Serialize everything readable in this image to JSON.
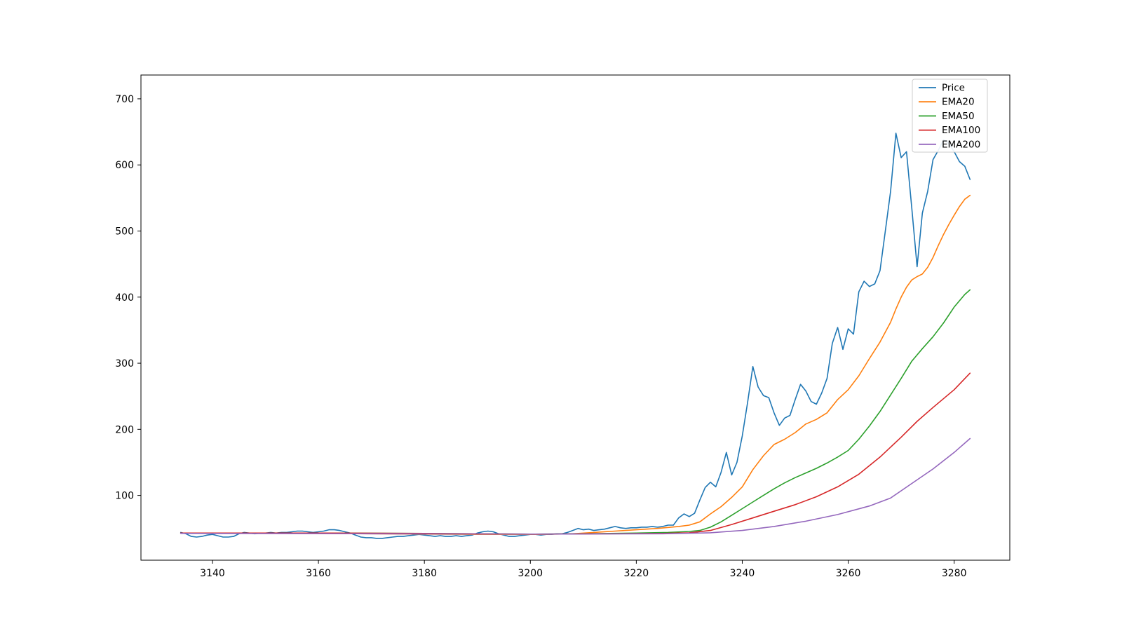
{
  "figure": {
    "background": "#ffffff",
    "plot_background": "#ffffff",
    "spine_color": "#000000",
    "tick_label_color": "#000000"
  },
  "chart_data": {
    "type": "line",
    "title": "",
    "xlabel": "",
    "ylabel": "",
    "grid": false,
    "xlim": [
      3126.5,
      3290.5
    ],
    "ylim": [
      2,
      736
    ],
    "x_ticks": [
      3140,
      3160,
      3180,
      3200,
      3220,
      3240,
      3260,
      3280
    ],
    "y_ticks": [
      100,
      200,
      300,
      400,
      500,
      600,
      700
    ],
    "legend": {
      "position": "upper right",
      "background": "#ffffff",
      "border_color": "#cccccc",
      "entries": [
        "Price",
        "EMA20",
        "EMA50",
        "EMA100",
        "EMA200"
      ]
    },
    "series": [
      {
        "name": "Price",
        "color": "#1f77b4",
        "x_start": 3134,
        "x_step": 1,
        "values": [
          44,
          42,
          38,
          37,
          38,
          40,
          41,
          39,
          37,
          37,
          38,
          42,
          44,
          43,
          42,
          43,
          43,
          44,
          43,
          44,
          44,
          45,
          46,
          46,
          45,
          44,
          45,
          46,
          48,
          48,
          47,
          45,
          43,
          40,
          37,
          36,
          36,
          35,
          35,
          36,
          37,
          38,
          38,
          39,
          40,
          41,
          40,
          39,
          38,
          39,
          38,
          38,
          39,
          38,
          39,
          40,
          43,
          45,
          46,
          45,
          42,
          40,
          38,
          38,
          39,
          40,
          41,
          41,
          40,
          41,
          41,
          42,
          42,
          44,
          47,
          50,
          48,
          49,
          47,
          48,
          49,
          51,
          53,
          51,
          50,
          51,
          51,
          52,
          52,
          53,
          52,
          53,
          55,
          55,
          66,
          72,
          68,
          73,
          93,
          112,
          120,
          113,
          135,
          165,
          131,
          150,
          190,
          240,
          295,
          264,
          251,
          248,
          225,
          206,
          217,
          221,
          245,
          268,
          258,
          242,
          238,
          255,
          277,
          330,
          354,
          321,
          352,
          344,
          408,
          424,
          416,
          420,
          440,
          500,
          560,
          648,
          611,
          620,
          535,
          446,
          527,
          560,
          608,
          622,
          638,
          632,
          620,
          605,
          598,
          578
        ]
      },
      {
        "name": "EMA20",
        "color": "#ff7f0e",
        "x": [
          3134,
          3150,
          3170,
          3180,
          3190,
          3200,
          3205,
          3208,
          3212,
          3216,
          3220,
          3224,
          3228,
          3230,
          3232,
          3234,
          3236,
          3238,
          3240,
          3242,
          3244,
          3246,
          3248,
          3250,
          3252,
          3254,
          3256,
          3258,
          3260,
          3262,
          3264,
          3266,
          3268,
          3269,
          3270,
          3271,
          3272,
          3273,
          3274,
          3275,
          3276,
          3277,
          3278,
          3279,
          3280,
          3281,
          3282,
          3283
        ],
        "values": [
          43,
          43,
          42,
          41.5,
          41,
          41,
          41.5,
          42,
          44,
          46,
          48,
          50,
          53,
          55,
          60,
          72,
          83,
          97,
          113,
          139,
          160,
          177,
          185,
          195,
          208,
          215,
          225,
          245,
          260,
          281,
          307,
          332,
          362,
          382,
          400,
          415,
          426,
          431,
          435,
          445,
          460,
          478,
          495,
          510,
          524,
          537,
          548,
          554
        ]
      },
      {
        "name": "EMA50",
        "color": "#2ca02c",
        "x": [
          3134,
          3160,
          3180,
          3200,
          3210,
          3220,
          3226,
          3230,
          3232,
          3234,
          3236,
          3238,
          3240,
          3242,
          3244,
          3246,
          3248,
          3250,
          3252,
          3254,
          3256,
          3258,
          3260,
          3262,
          3264,
          3266,
          3268,
          3270,
          3272,
          3274,
          3276,
          3278,
          3280,
          3282,
          3283
        ],
        "values": [
          43,
          43,
          42.5,
          41.5,
          42,
          43,
          44,
          45.5,
          47,
          52,
          60,
          70,
          80,
          90,
          100,
          110,
          119,
          127,
          134,
          141,
          149,
          158,
          168,
          185,
          205,
          227,
          252,
          277,
          303,
          322,
          340,
          361,
          385,
          404,
          411
        ]
      },
      {
        "name": "EMA100",
        "color": "#d62728",
        "x": [
          3134,
          3160,
          3180,
          3200,
          3215,
          3225,
          3230,
          3234,
          3238,
          3242,
          3246,
          3250,
          3254,
          3258,
          3262,
          3266,
          3270,
          3273,
          3276,
          3280,
          3283
        ],
        "values": [
          43,
          43,
          42.5,
          41.5,
          42,
          42.5,
          43.5,
          47,
          56,
          66,
          76,
          86,
          98,
          113,
          132,
          158,
          188,
          212,
          233,
          260,
          285
        ]
      },
      {
        "name": "EMA200",
        "color": "#9467bd",
        "x": [
          3134,
          3170,
          3200,
          3225,
          3234,
          3240,
          3246,
          3252,
          3258,
          3264,
          3268,
          3272,
          3276,
          3280,
          3281,
          3283
        ],
        "values": [
          42.5,
          42,
          41.5,
          42,
          43.5,
          47,
          53,
          61,
          71,
          84,
          96,
          118,
          140,
          165,
          172,
          186
        ]
      }
    ]
  }
}
